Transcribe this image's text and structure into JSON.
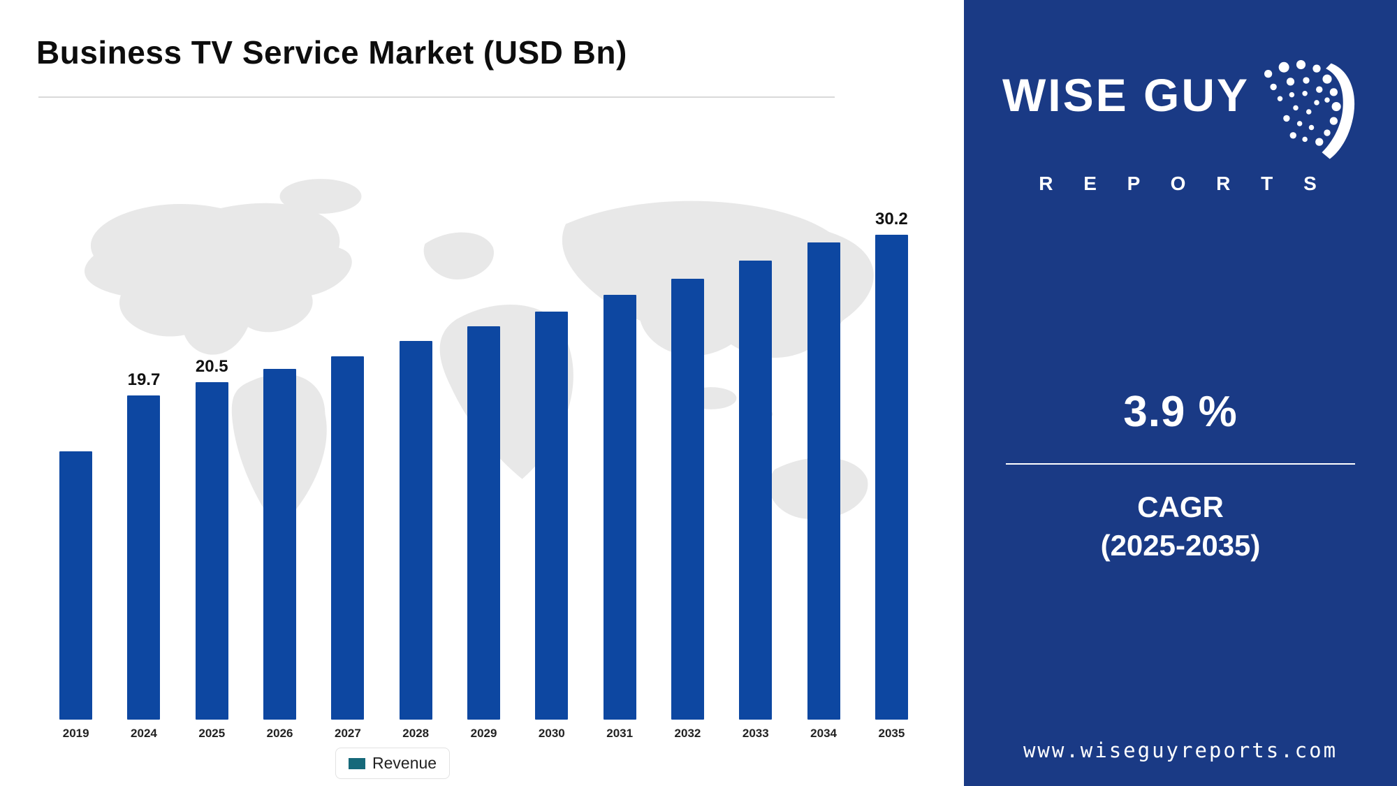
{
  "title": "Business TV Service Market (USD Bn)",
  "chart_data": {
    "type": "bar",
    "title": "Business TV Service Market (USD Bn)",
    "categories": [
      "2019",
      "2024",
      "2025",
      "2026",
      "2027",
      "2028",
      "2029",
      "2030",
      "2031",
      "2032",
      "2033",
      "2034",
      "2035"
    ],
    "values": [
      16.3,
      19.7,
      20.5,
      21.3,
      22.1,
      23.0,
      23.9,
      24.8,
      25.8,
      26.8,
      27.9,
      29.0,
      30.2
    ],
    "point_labels": [
      "",
      "19.7",
      "20.5",
      "",
      "",
      "",
      "",
      "",
      "",
      "",
      "",
      "",
      "30.2"
    ],
    "xlabel": "",
    "ylabel": "",
    "ylim": [
      0,
      31
    ],
    "grid": false,
    "legend_position": "bottom",
    "legend": [
      "Revenue"
    ],
    "bar_color": "#0d47a1"
  },
  "legend": {
    "label": "Revenue",
    "color": "#16697a"
  },
  "panel": {
    "bg_color": "#1a3a85",
    "logo_line1": "WISE GUY",
    "logo_line2": "R E P O R T S",
    "cagr_value": "3.9 %",
    "cagr_label_line1": "CAGR",
    "cagr_label_line2": "(2025-2035)",
    "website": "www.wiseguyreports.com"
  }
}
